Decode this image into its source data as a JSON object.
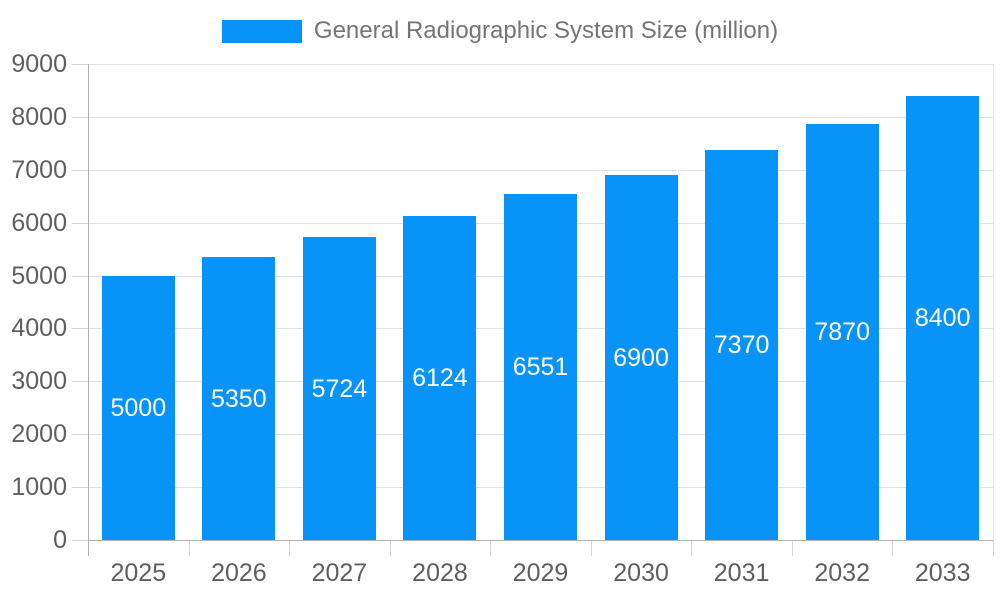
{
  "legend": {
    "label": "General Radiographic System Size (million)"
  },
  "chart_data": {
    "type": "bar",
    "title": "",
    "categories": [
      "2025",
      "2026",
      "2027",
      "2028",
      "2029",
      "2030",
      "2031",
      "2032",
      "2033"
    ],
    "series": [
      {
        "name": "General Radiographic System Size (million)",
        "values": [
          5000,
          5350,
          5724,
          6124,
          6551,
          6900,
          7370,
          7870,
          8400
        ],
        "color": "#0793f8",
        "value_label_color": "#ffffff",
        "value_label_position": "inside-center"
      }
    ],
    "xlabel": "",
    "ylabel": "",
    "ylim": [
      0,
      9000
    ],
    "ytick_interval": 1000,
    "ytick_labels": [
      "0",
      "1000",
      "2000",
      "3000",
      "4000",
      "5000",
      "6000",
      "7000",
      "8000",
      "9000"
    ],
    "grid": true,
    "legend_position": "top-center",
    "background_color": "#ffffff"
  }
}
